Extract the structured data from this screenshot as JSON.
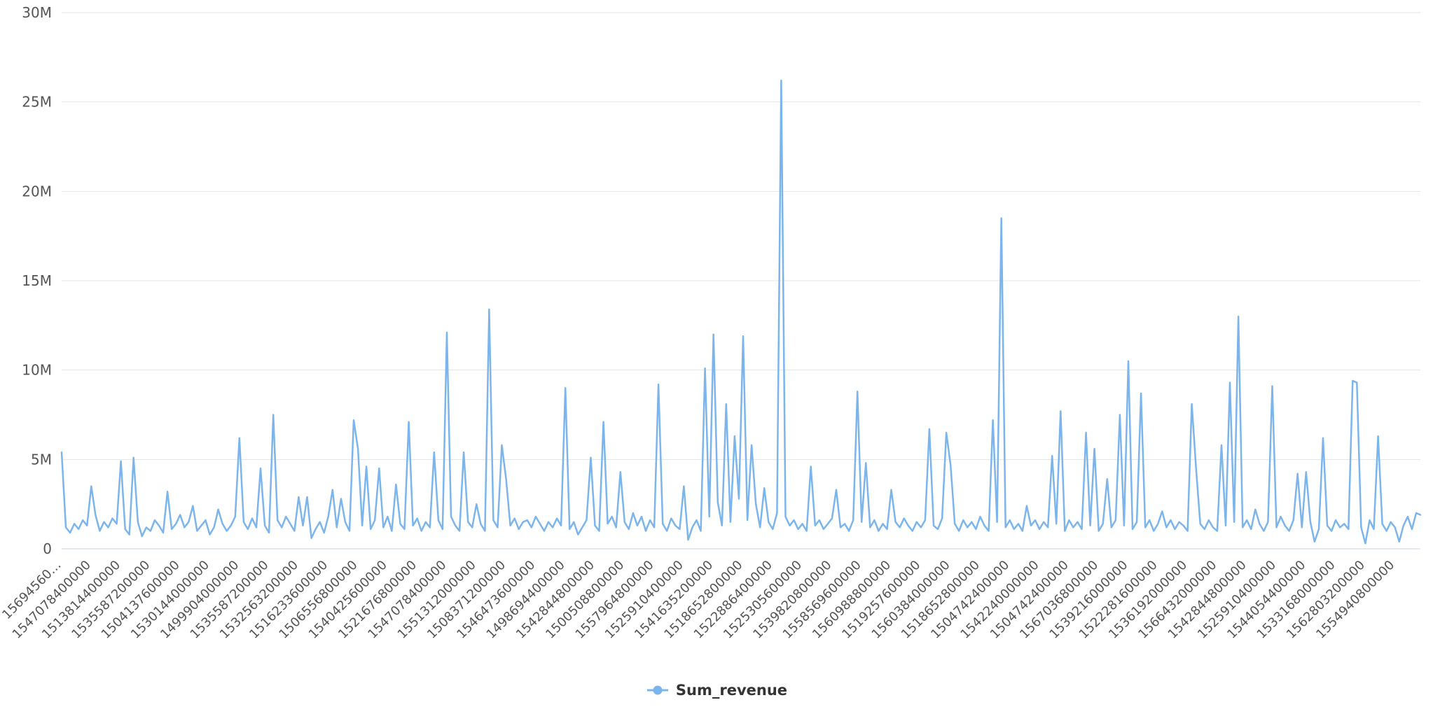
{
  "legend": {
    "label": "Sum_revenue"
  },
  "chart_data": {
    "type": "line",
    "title": "",
    "xlabel": "",
    "ylabel": "",
    "y_unit": "M (millions)",
    "ylim": [
      0,
      30
    ],
    "grid": true,
    "legend_position": "bottom-center",
    "x_labels_rotation": -45,
    "x_tick_every": 7,
    "colors": {
      "series": "#7cb5ec",
      "gridline": "#e6e6e6",
      "axis_line": "#ccd6eb",
      "tick_text": "#555555",
      "legend_text": "#333333",
      "background": "#ffffff"
    },
    "y_tick_values": [
      0,
      5,
      10,
      15,
      20,
      25,
      30
    ],
    "y_tick_labels": [
      "0",
      "5M",
      "10M",
      "15M",
      "20M",
      "25M",
      "30M"
    ],
    "x_tick_labels": [
      "15694560…",
      "1547078400000",
      "1513814400000",
      "1535587200000",
      "1504137600000",
      "1530144000000",
      "1499904000000",
      "1535587200000",
      "1532563200000",
      "1516233600000",
      "1506556800000",
      "1540425600000",
      "1521676800000",
      "1547078400000",
      "1551312000000",
      "1508371200000",
      "1546473600000",
      "1498694400000",
      "1542844800000",
      "1500508800000",
      "1557964800000",
      "1525910400000",
      "1541635200000",
      "1518652800000",
      "1522886400000",
      "1525305600000",
      "1539820800000",
      "1558569600000",
      "1560988800000",
      "1519257600000",
      "1560384000000",
      "1518652800000",
      "1504742400000",
      "1542240000000",
      "1504742400000",
      "1567036800000",
      "1539216000000",
      "1522281600000",
      "1536192000000",
      "1566432000000",
      "1542844800000",
      "1525910400000",
      "1544054400000",
      "1533168000000",
      "1562803200000",
      "1554940800000"
    ],
    "series": [
      {
        "name": "Sum_revenue",
        "color": "#7cb5ec",
        "values_in_millions": [
          5.4,
          1.2,
          0.9,
          1.4,
          1.1,
          1.6,
          1.3,
          3.5,
          1.9,
          1.0,
          1.5,
          1.2,
          1.7,
          1.4,
          4.9,
          1.1,
          0.8,
          5.1,
          1.5,
          0.7,
          1.2,
          1.0,
          1.6,
          1.3,
          0.9,
          3.2,
          1.1,
          1.4,
          1.9,
          1.2,
          1.5,
          2.4,
          1.0,
          1.3,
          1.6,
          0.8,
          1.2,
          2.2,
          1.4,
          1.0,
          1.3,
          1.8,
          6.2,
          1.5,
          1.1,
          1.7,
          1.2,
          4.5,
          1.3,
          0.9,
          7.5,
          1.6,
          1.2,
          1.8,
          1.4,
          1.0,
          2.9,
          1.3,
          2.9,
          0.6,
          1.1,
          1.5,
          0.9,
          1.8,
          3.3,
          1.2,
          2.8,
          1.5,
          1.0,
          7.2,
          5.6,
          1.3,
          4.6,
          1.1,
          1.6,
          4.5,
          1.2,
          1.8,
          1.0,
          3.6,
          1.4,
          1.1,
          7.1,
          1.3,
          1.7,
          1.0,
          1.5,
          1.2,
          5.4,
          1.6,
          1.1,
          12.1,
          1.8,
          1.3,
          1.0,
          5.4,
          1.5,
          1.2,
          2.5,
          1.4,
          1.0,
          13.4,
          1.6,
          1.2,
          5.8,
          3.9,
          1.3,
          1.7,
          1.1,
          1.5,
          1.6,
          1.2,
          1.8,
          1.4,
          1.0,
          1.5,
          1.2,
          1.7,
          1.3,
          9.0,
          1.1,
          1.5,
          0.8,
          1.2,
          1.6,
          5.1,
          1.3,
          1.0,
          7.1,
          1.4,
          1.8,
          1.2,
          4.3,
          1.5,
          1.1,
          2.0,
          1.3,
          1.8,
          1.0,
          1.6,
          1.2,
          9.2,
          1.4,
          1.0,
          1.7,
          1.3,
          1.1,
          3.5,
          0.5,
          1.2,
          1.6,
          1.0,
          10.1,
          1.8,
          12.0,
          2.6,
          1.3,
          8.1,
          1.5,
          6.3,
          2.8,
          11.9,
          1.6,
          5.8,
          2.5,
          1.2,
          3.4,
          1.5,
          1.1,
          2.0,
          26.2,
          1.8,
          1.3,
          1.6,
          1.1,
          1.4,
          1.0,
          4.6,
          1.3,
          1.6,
          1.1,
          1.4,
          1.7,
          3.3,
          1.2,
          1.4,
          1.0,
          1.6,
          8.8,
          1.5,
          4.8,
          1.2,
          1.6,
          1.0,
          1.4,
          1.1,
          3.3,
          1.5,
          1.2,
          1.7,
          1.3,
          1.0,
          1.5,
          1.2,
          1.6,
          6.7,
          1.3,
          1.1,
          1.7,
          6.5,
          4.7,
          1.4,
          1.0,
          1.6,
          1.2,
          1.5,
          1.1,
          1.8,
          1.3,
          1.0,
          7.2,
          1.5,
          18.5,
          1.2,
          1.6,
          1.1,
          1.4,
          1.0,
          2.4,
          1.3,
          1.6,
          1.1,
          1.5,
          1.2,
          5.2,
          1.4,
          7.7,
          1.0,
          1.6,
          1.2,
          1.5,
          1.1,
          6.5,
          1.3,
          5.6,
          1.0,
          1.4,
          3.9,
          1.2,
          1.6,
          7.5,
          1.3,
          10.5,
          1.1,
          1.5,
          8.7,
          1.2,
          1.6,
          1.0,
          1.4,
          2.1,
          1.2,
          1.6,
          1.1,
          1.5,
          1.3,
          1.0,
          8.1,
          4.5,
          1.4,
          1.1,
          1.6,
          1.2,
          1.0,
          5.8,
          1.3,
          9.3,
          1.5,
          13.0,
          1.2,
          1.6,
          1.1,
          2.2,
          1.4,
          1.0,
          1.5,
          9.1,
          1.2,
          1.8,
          1.3,
          1.0,
          1.6,
          4.2,
          1.2,
          4.3,
          1.5,
          0.4,
          1.1,
          6.2,
          1.3,
          1.0,
          1.6,
          1.2,
          1.4,
          1.1,
          9.4,
          9.3,
          1.2,
          0.3,
          1.6,
          1.1,
          6.3,
          1.4,
          1.0,
          1.5,
          1.2,
          0.4,
          1.3,
          1.8,
          1.1,
          2.0,
          1.9
        ]
      }
    ]
  }
}
